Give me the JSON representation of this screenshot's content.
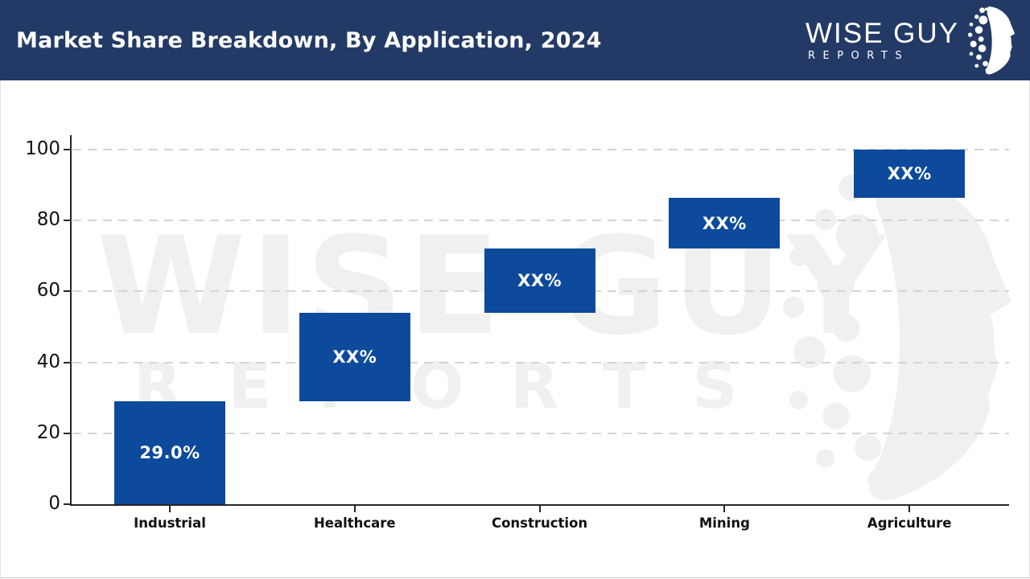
{
  "header": {
    "title": "Market Share Breakdown, By Application, 2024",
    "logo": {
      "line1": "WISE GUY",
      "line2": "REPORTS"
    }
  },
  "watermark": {
    "line1": "WISE GUY",
    "line2": "REPORTS"
  },
  "chart_data": {
    "type": "bar",
    "subtype": "waterfall",
    "title": "Market Share Breakdown, By Application, 2024",
    "xlabel": "",
    "ylabel": "",
    "ylim": [
      0,
      104
    ],
    "grid": "dashed horizontal",
    "legend": "none",
    "yticks": [
      0,
      20,
      40,
      60,
      80,
      100
    ],
    "categories": [
      "Industrial",
      "Healthcare",
      "Construction",
      "Mining",
      "Agriculture"
    ],
    "segments": [
      {
        "category": "Industrial",
        "start": 0,
        "end": 29,
        "label": "29.0%"
      },
      {
        "category": "Healthcare",
        "start": 29,
        "end": 54,
        "label": "XX%"
      },
      {
        "category": "Construction",
        "start": 54,
        "end": 72,
        "label": "XX%"
      },
      {
        "category": "Mining",
        "start": 72,
        "end": 86.5,
        "label": "XX%"
      },
      {
        "category": "Agriculture",
        "start": 86.5,
        "end": 100,
        "label": "XX%"
      }
    ]
  },
  "colors": {
    "header_bg": "#233a66",
    "bar": "#0d4a9c",
    "bar_label": "#ffffff",
    "grid": "#d4d4d4",
    "axis": "#262626",
    "watermark": "#f0f0f0",
    "title_text": "#ffffff"
  }
}
